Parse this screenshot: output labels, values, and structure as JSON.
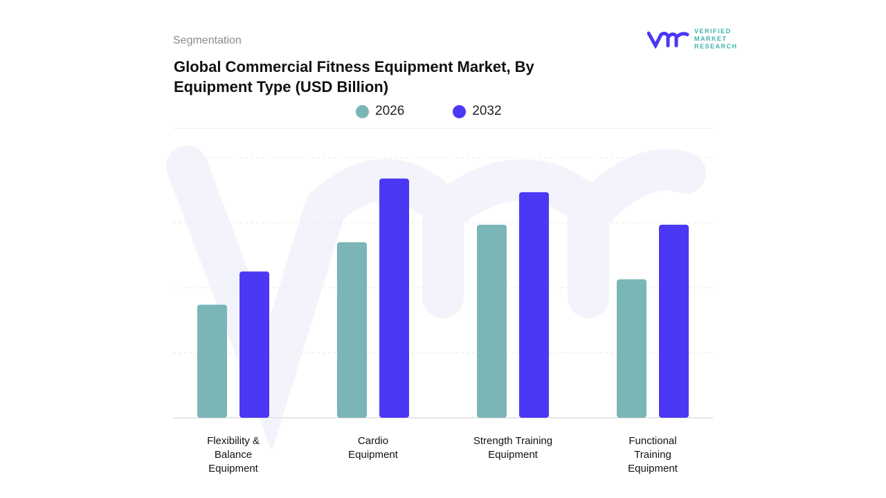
{
  "header": {
    "segment_label": "Segmentation",
    "title": "Global Commercial Fitness Equipment Market, By Equipment Type (USD Billion)"
  },
  "logo": {
    "text": "VERIFIED\nMARKET\nRESEARCH",
    "mark": "vmr"
  },
  "chart_data": {
    "type": "bar",
    "title": "Global Commercial Fitness Equipment Market, By Equipment Type (USD Billion)",
    "categories": [
      "Flexibility &\nBalance\nEquipment",
      "Cardio\nEquipment",
      "Strength Training\nEquipment",
      "Functional\nTraining\nEquipment"
    ],
    "series": [
      {
        "name": "2026",
        "color": "#7AB5B7",
        "values": [
          1.74,
          2.7,
          2.97,
          2.13
        ]
      },
      {
        "name": "2032",
        "color": "#4B38F5",
        "values": [
          2.25,
          3.68,
          3.47,
          2.97
        ]
      }
    ],
    "ylim": [
      0,
      4
    ],
    "grid": true,
    "legend": "top-center",
    "xlabel": "",
    "ylabel": ""
  }
}
